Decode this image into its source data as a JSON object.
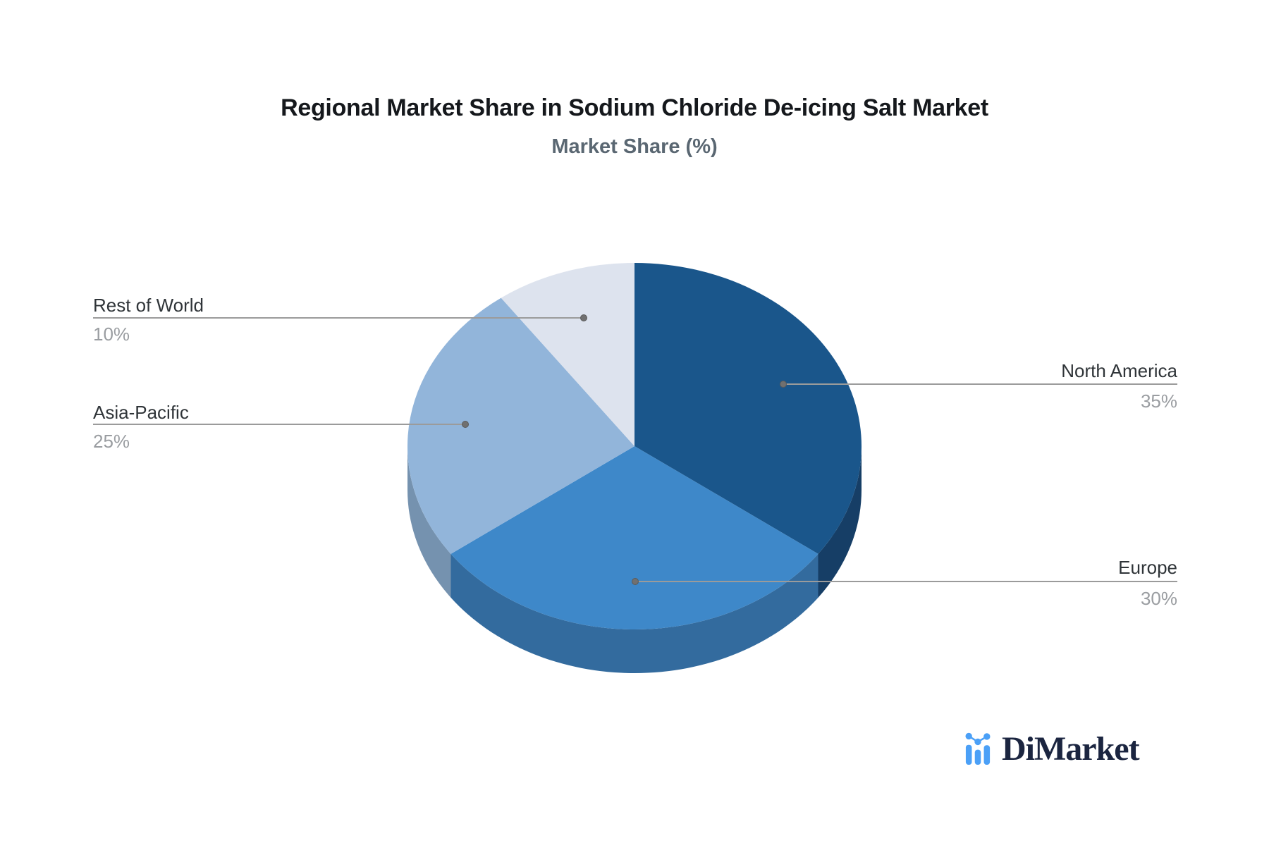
{
  "page": {
    "background": "#FFFFFF"
  },
  "chart_data": {
    "type": "pie",
    "style": "3d-pie",
    "title": "Regional Market Share in Sodium Chloride De-icing Salt Market",
    "subtitle": "Market Share (%)",
    "unit": "%",
    "direction": "clockwise",
    "start_angle": "12-oclock",
    "legend_position": "outside-callout-labels",
    "series": [
      {
        "name": "North America",
        "value": 35,
        "label": "35%",
        "color": "#1A568B",
        "side_color": "#163E66"
      },
      {
        "name": "Europe",
        "value": 30,
        "label": "30%",
        "color": "#3E88C9",
        "side_color": "#336B9E"
      },
      {
        "name": "Asia-Pacific",
        "value": 25,
        "label": "25%",
        "color": "#92B5DA",
        "side_color": "#7592AF"
      },
      {
        "name": "Rest of World",
        "value": 10,
        "label": "10%",
        "color": "#DDE3EE",
        "side_color": "#C3CEDC"
      }
    ],
    "callout_line_color": "#9B9B9B",
    "callout_dot_color": "#707070",
    "label_color": "#2F3438",
    "value_color": "#9A9DA1",
    "title_color": "#15181C",
    "subtitle_color": "#5A6772"
  },
  "footer": {
    "brand": "DiMarket",
    "brand_color": "#1B2540",
    "icon": "bar-chart-logo-icon",
    "icon_color": "#4BA0F7"
  }
}
